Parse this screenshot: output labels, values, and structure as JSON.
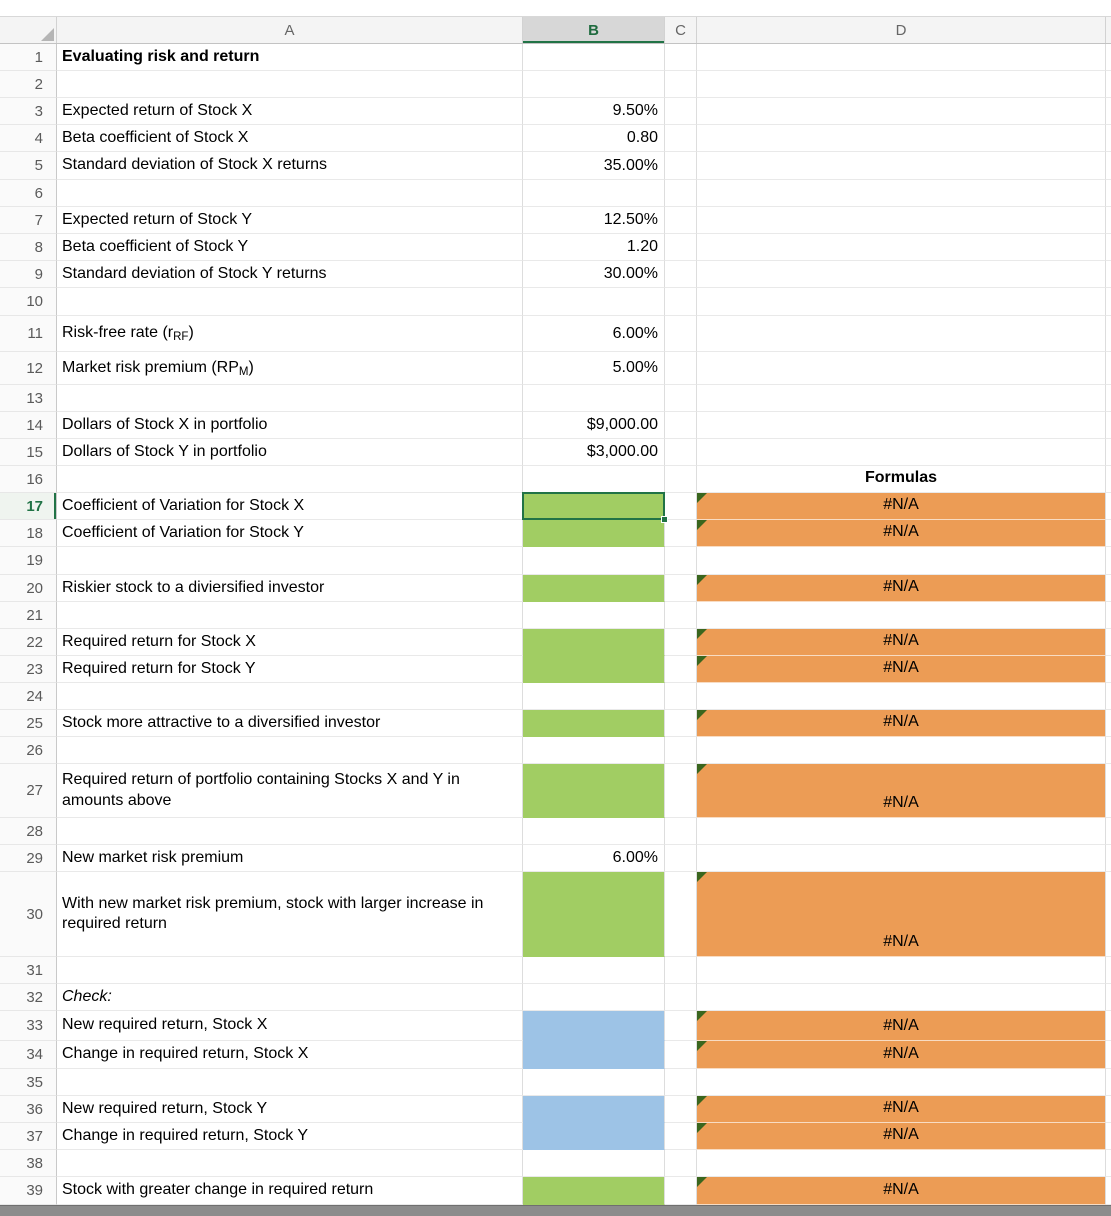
{
  "sheet": {
    "columns": [
      "A",
      "B",
      "C",
      "D"
    ],
    "na_text": "#N/A",
    "formulas_header": "Formulas",
    "colors": {
      "input_green": "#A1CD63",
      "input_blue": "#9DC3E6",
      "formula_orange": "#EC9C55",
      "selection_green": "#217346"
    },
    "rows": [
      {
        "n": 1,
        "a": "Evaluating risk and return",
        "style": "bold"
      },
      {
        "n": 2
      },
      {
        "n": 3,
        "a": "Expected return of Stock X",
        "b": "9.50%"
      },
      {
        "n": 4,
        "a": "Beta coefficient of Stock X",
        "b": "0.80"
      },
      {
        "n": 5,
        "a": "Standard deviation of Stock X returns",
        "b": "35.00%"
      },
      {
        "n": 6
      },
      {
        "n": 7,
        "a": "Expected return of Stock Y",
        "b": "12.50%"
      },
      {
        "n": 8,
        "a": "Beta coefficient of Stock Y",
        "b": "1.20"
      },
      {
        "n": 9,
        "a": "Standard deviation of Stock Y returns",
        "b": "30.00%"
      },
      {
        "n": 10
      },
      {
        "n": 11,
        "a_rich": {
          "pre": "Risk-free rate (r",
          "sub": "RF",
          "post": ")"
        },
        "b": "6.00%"
      },
      {
        "n": 12,
        "a_rich": {
          "pre": "Market risk premium (RP",
          "sub": "M",
          "post": ")"
        },
        "b": "5.00%"
      },
      {
        "n": 13
      },
      {
        "n": 14,
        "a": "Dollars of Stock X in portfolio",
        "b": "$9,000.00"
      },
      {
        "n": 15,
        "a": "Dollars of Stock Y in portfolio",
        "b": "$3,000.00"
      },
      {
        "n": 16,
        "d_title": "Formulas"
      },
      {
        "n": 17,
        "a": "Coefficient of Variation for Stock X",
        "fill": "green",
        "selected": true,
        "d": "na"
      },
      {
        "n": 18,
        "a": "Coefficient of Variation for Stock Y",
        "fill": "green",
        "d": "na"
      },
      {
        "n": 19
      },
      {
        "n": 20,
        "a": "Riskier stock to a diviersified investor",
        "fill": "green",
        "d": "na"
      },
      {
        "n": 21
      },
      {
        "n": 22,
        "a": "Required return for Stock X",
        "fill": "green",
        "d": "na"
      },
      {
        "n": 23,
        "a": "Required return for Stock Y",
        "fill": "green",
        "d": "na"
      },
      {
        "n": 24
      },
      {
        "n": 25,
        "a": "Stock more attractive to a diversified investor",
        "fill": "green",
        "d": "na"
      },
      {
        "n": 26
      },
      {
        "n": 27,
        "a": "Required return of portfolio containing Stocks X and Y in amounts above",
        "fill": "green",
        "d": "na"
      },
      {
        "n": 28
      },
      {
        "n": 29,
        "a": "New market risk premium",
        "b": "6.00%"
      },
      {
        "n": 30,
        "a": "With new market risk premium, stock with larger increase in required return",
        "fill": "green",
        "d": "na"
      },
      {
        "n": 31
      },
      {
        "n": 32,
        "a": "Check:",
        "style": "italic"
      },
      {
        "n": 33,
        "a": "New required return, Stock X",
        "fill": "blue",
        "d": "na"
      },
      {
        "n": 34,
        "a": "Change in required return, Stock X",
        "fill": "blue",
        "d": "na"
      },
      {
        "n": 35
      },
      {
        "n": 36,
        "a": "New required return, Stock Y",
        "fill": "blue",
        "d": "na"
      },
      {
        "n": 37,
        "a": "Change in required return, Stock Y",
        "fill": "blue",
        "d": "na"
      },
      {
        "n": 38
      },
      {
        "n": 39,
        "a": "Stock with greater change in required return",
        "fill": "green",
        "d": "na"
      }
    ]
  }
}
